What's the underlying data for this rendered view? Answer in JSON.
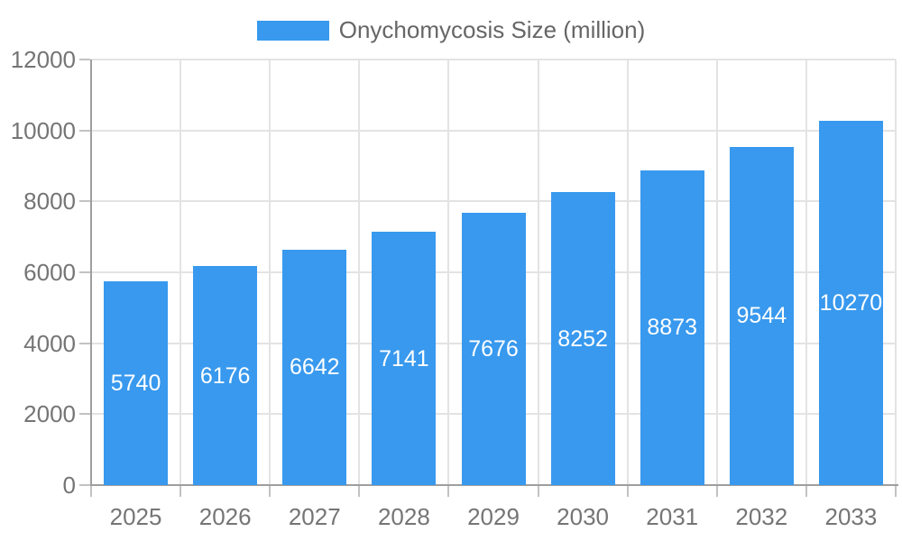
{
  "chart_data": {
    "type": "bar",
    "title": "",
    "legend": "Onychomycosis Size (million)",
    "legend_position": "top",
    "categories": [
      "2025",
      "2026",
      "2027",
      "2028",
      "2029",
      "2030",
      "2031",
      "2032",
      "2033"
    ],
    "values": [
      5740,
      6176,
      6642,
      7141,
      7676,
      8252,
      8873,
      9544,
      10270
    ],
    "value_labels": [
      "5740",
      "6176",
      "6642",
      "7141",
      "7676",
      "8252",
      "8873",
      "9544",
      "10270"
    ],
    "xlabel": "",
    "ylabel": "",
    "ylim": [
      0,
      12000
    ],
    "ytick_step": 2000,
    "ytick_labels": [
      "0",
      "2000",
      "4000",
      "6000",
      "8000",
      "10000",
      "12000"
    ],
    "grid": true,
    "colors": {
      "bar": "#3899EE",
      "value_label": "#FFFFFF",
      "axis_text": "#757575",
      "legend_text": "#666666",
      "gridline": "#E3E3E3",
      "axis_line": "#9E9E9E"
    }
  }
}
